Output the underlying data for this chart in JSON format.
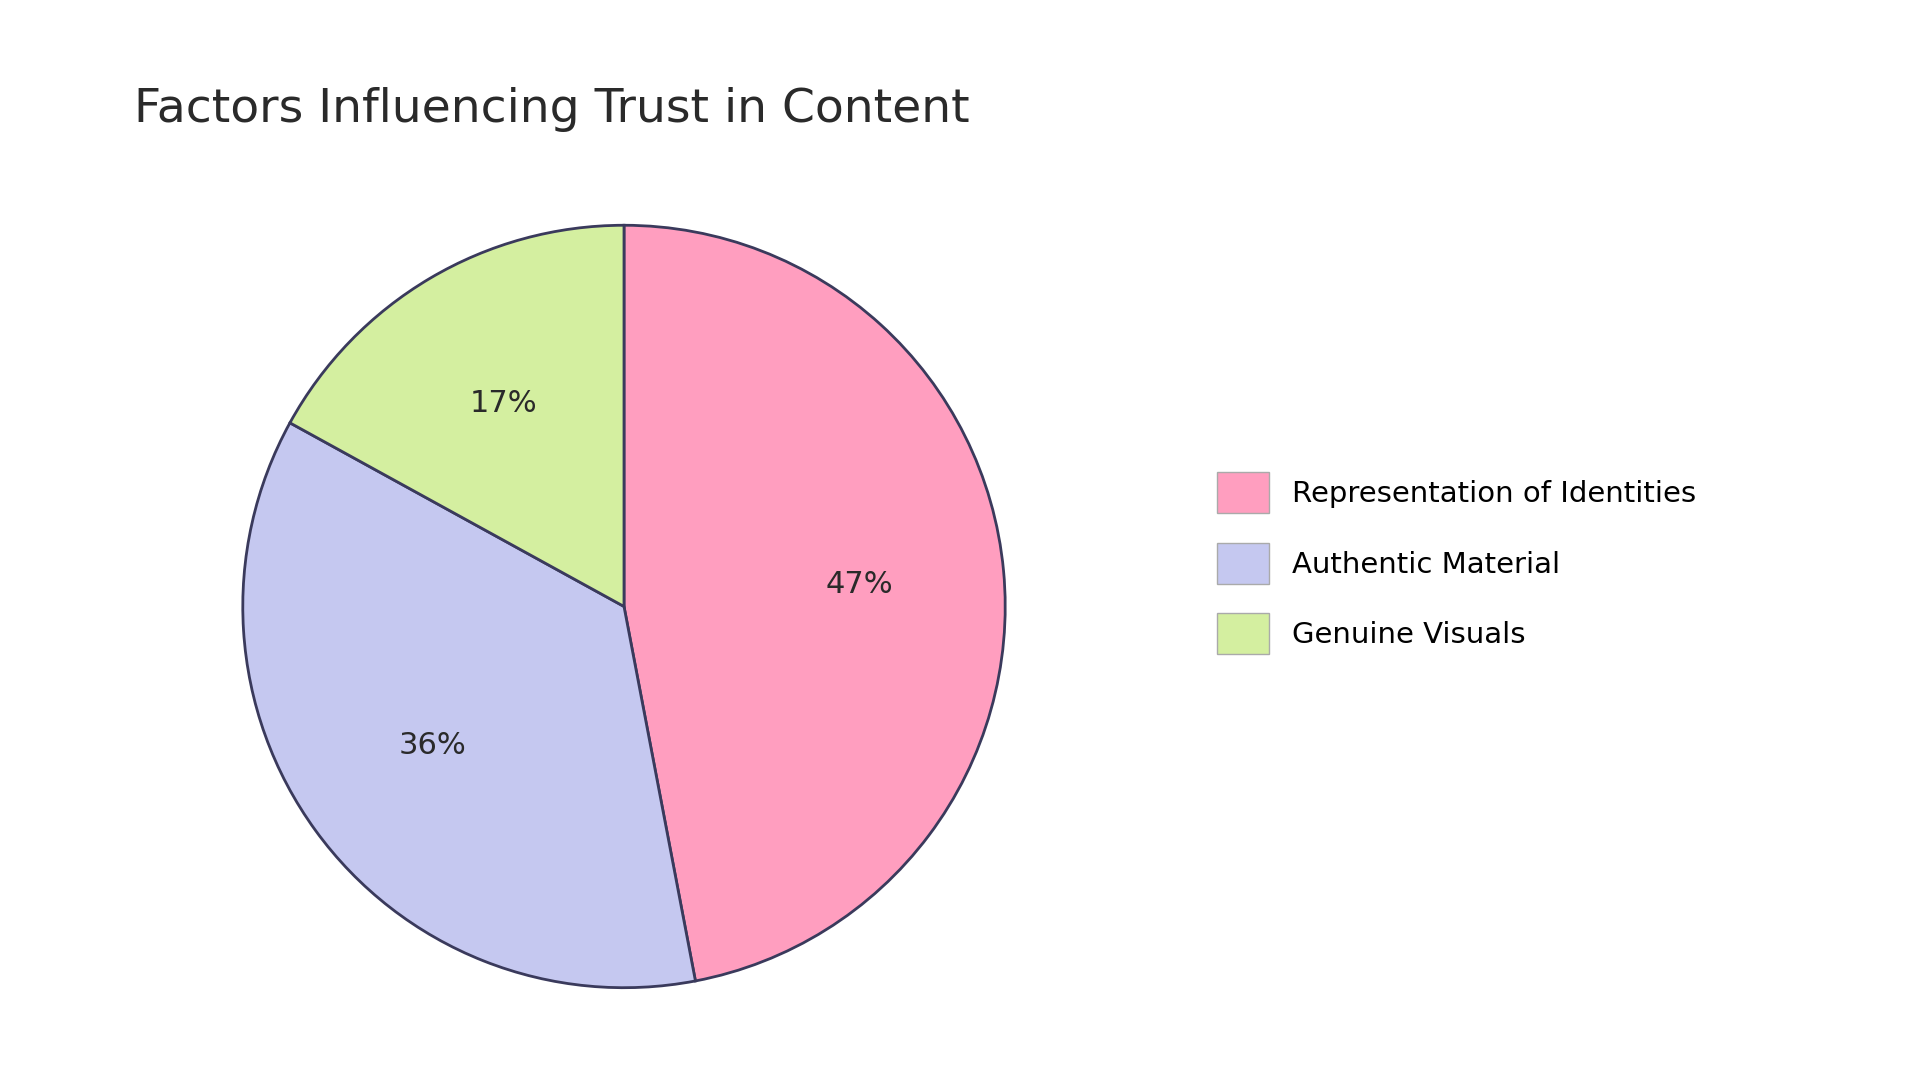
{
  "title": "Factors Influencing Trust in Content",
  "slices": [
    47,
    36,
    17
  ],
  "labels": [
    "Representation of Identities",
    "Authentic Material",
    "Genuine Visuals"
  ],
  "colors": [
    "#FF9EBF",
    "#C5C8F0",
    "#D4EFA0"
  ],
  "edge_color": "#3A3A5C",
  "pct_labels": [
    "47%",
    "36%",
    "17%"
  ],
  "startangle": 90,
  "title_fontsize": 34,
  "pct_fontsize": 22,
  "legend_fontsize": 21,
  "background_color": "#FFFFFF"
}
